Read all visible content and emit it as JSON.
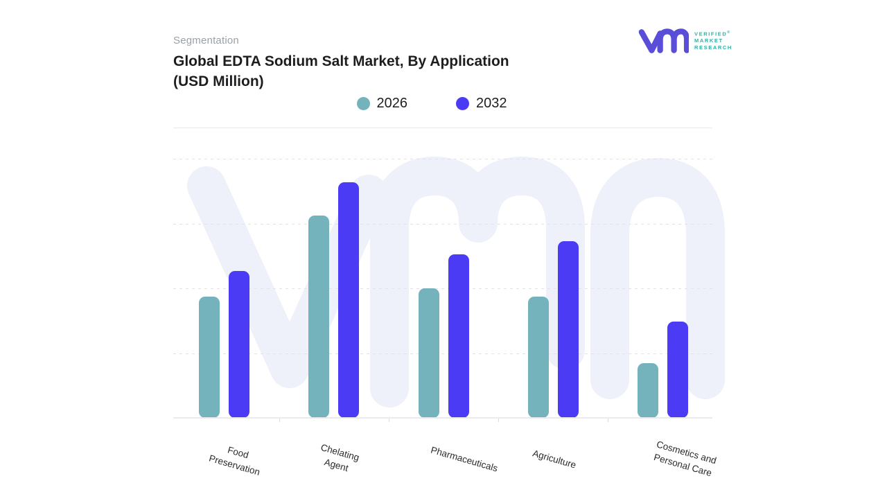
{
  "header": {
    "eyebrow": "Segmentation",
    "title_line1": "Global EDTA Sodium Salt Market, By Application",
    "title_line2": "(USD Million)"
  },
  "logo": {
    "brand_lines": [
      "VERIFIED",
      "MARKET",
      "RESEARCH"
    ],
    "registered_mark": "®",
    "monogram_color": "#5a4ed8",
    "text_color": "#2eb2a2"
  },
  "legend": [
    {
      "label": "2026",
      "color": "#74b3bc"
    },
    {
      "label": "2032",
      "color": "#4b3bf5"
    }
  ],
  "chart_data": {
    "type": "bar",
    "title": "Global EDTA Sodium Salt Market, By Application (USD Million)",
    "categories": [
      "Food Preservation",
      "Chelating Agent",
      "Pharmaceuticals",
      "Agriculture",
      "Cosmetics and Personal Care"
    ],
    "series": [
      {
        "name": "2026",
        "color": "#74b3bc",
        "values": [
          187,
          312,
          200,
          187,
          84
        ]
      },
      {
        "name": "2032",
        "color": "#4b3bf5",
        "values": [
          227,
          364,
          252,
          273,
          149
        ]
      }
    ],
    "xlabel": "",
    "ylabel": "USD Million",
    "ylim": [
      0,
      400
    ],
    "y_tick_labels_visible": false,
    "grid": "horizontal dashed, unlabeled",
    "legend_position": "top-center",
    "note": "Y axis shows no numeric tick labels; values estimated in relative units where one gridline interval = 100."
  },
  "x_axis_labels": [
    {
      "lines": [
        "Food",
        "Preservation"
      ]
    },
    {
      "lines": [
        "Chelating",
        "Agent"
      ]
    },
    {
      "lines": [
        "Pharmaceuticals"
      ]
    },
    {
      "lines": [
        "Agriculture"
      ]
    },
    {
      "lines": [
        "Cosmetics and",
        "Personal Care"
      ]
    }
  ],
  "watermark": {
    "name": "vmr-monogram",
    "color": "#eef0fa"
  }
}
